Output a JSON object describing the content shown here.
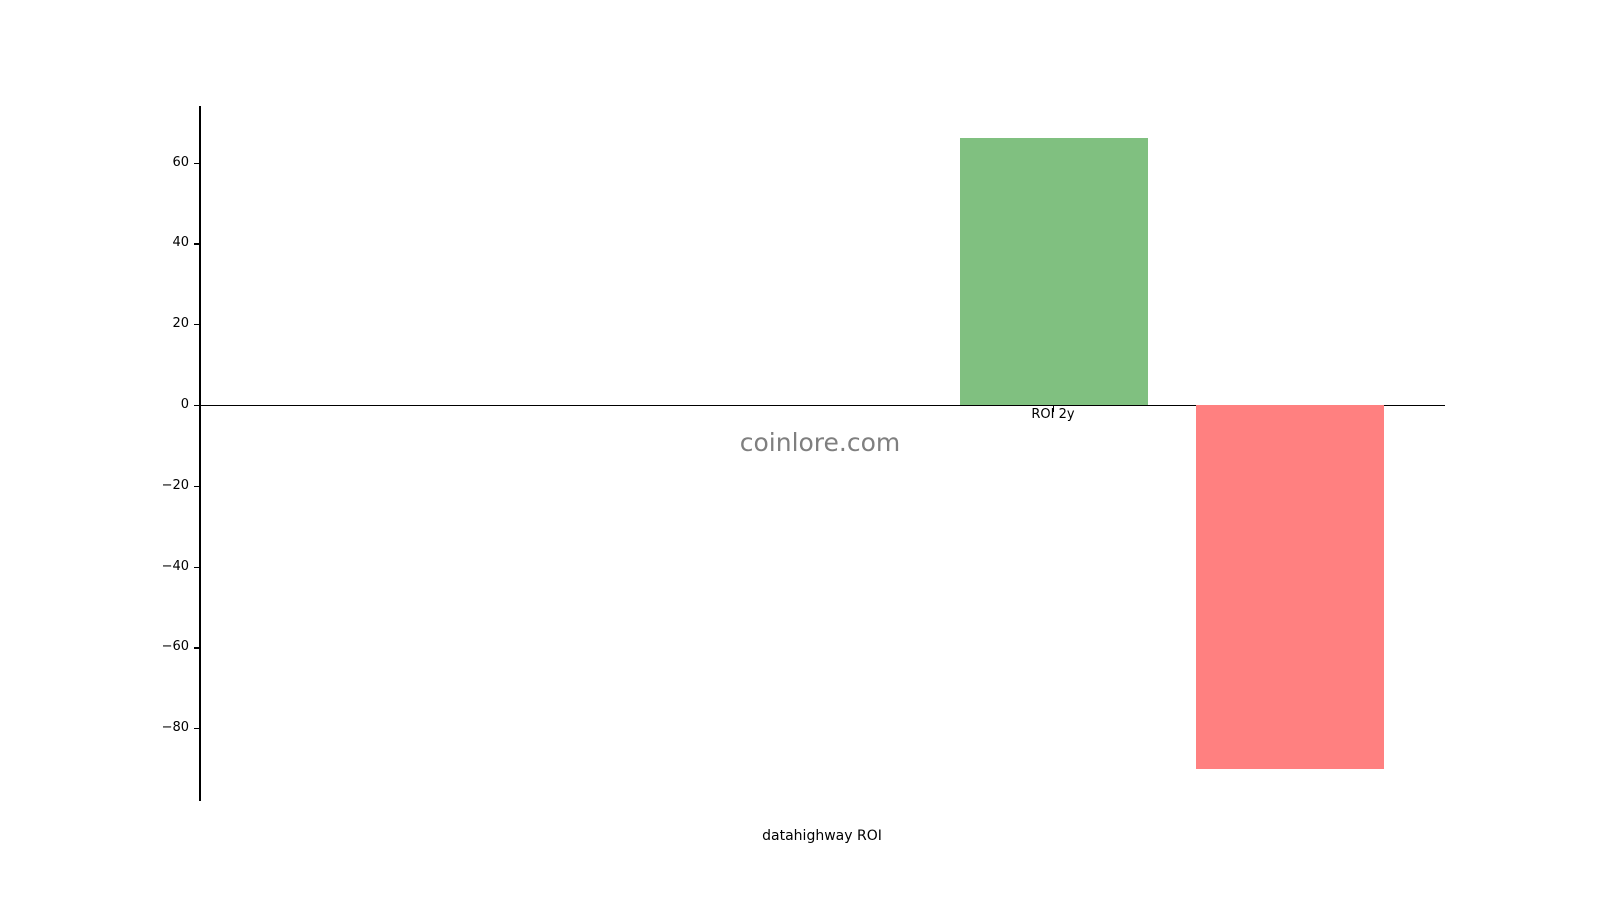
{
  "watermark": {
    "text": "coinlore.com",
    "color": "#7f7f7f"
  },
  "chart_data": {
    "type": "bar",
    "title": "",
    "xlabel": "datahighway ROI",
    "ylabel": "",
    "categories": [
      "ROI 2y",
      ""
    ],
    "values": [
      66,
      -90
    ],
    "bar_colors": [
      "#80c080",
      "#ff8080"
    ],
    "axis_color": "#000000",
    "ylim": [
      -98,
      74
    ],
    "yticks": [
      60,
      40,
      20,
      0,
      -20,
      -40,
      -60,
      -80
    ],
    "ytick_labels": [
      "60",
      "40",
      "20",
      "0",
      "−20",
      "−40",
      "−60",
      "−80"
    ],
    "xtick_labels": [
      "ROI 2y"
    ],
    "grid": false,
    "legend": "none",
    "baseline": 0
  }
}
